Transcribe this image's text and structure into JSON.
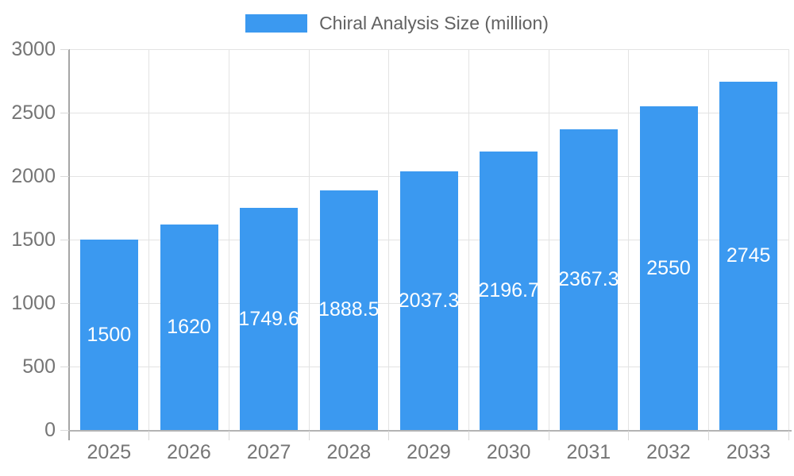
{
  "legend": {
    "label": "Chiral Analysis Size (million)"
  },
  "chart_data": {
    "type": "bar",
    "title": "",
    "categories": [
      "2025",
      "2026",
      "2027",
      "2028",
      "2029",
      "2030",
      "2031",
      "2032",
      "2033"
    ],
    "series": [
      {
        "name": "Chiral Analysis Size (million)",
        "values": [
          1500,
          1620,
          1749.6,
          1888.5,
          2037.3,
          2196.7,
          2367.3,
          2550,
          2745
        ]
      }
    ],
    "bar_value_labels": [
      "1500",
      "1620",
      "1749.6",
      "1888.5",
      "2037.3",
      "2196.7",
      "2367.3",
      "2550",
      "2745"
    ],
    "xlabel": "",
    "ylabel": "",
    "ylim": [
      0,
      3000
    ],
    "yticks": [
      0,
      500,
      1000,
      1500,
      2000,
      2500,
      3000
    ],
    "grid": true,
    "legend_position": "top",
    "bar_label_position": "inside-center",
    "colors": {
      "bar": "#3B99F0",
      "bar_label": "#ffffff",
      "axis_text": "#757575",
      "legend_text": "#616161",
      "gridline": "#e3e3e3",
      "tick": "#d9d9d9",
      "axis_line_x": "#b3b3b3",
      "axis_line_y": "#a6a6a6"
    }
  }
}
